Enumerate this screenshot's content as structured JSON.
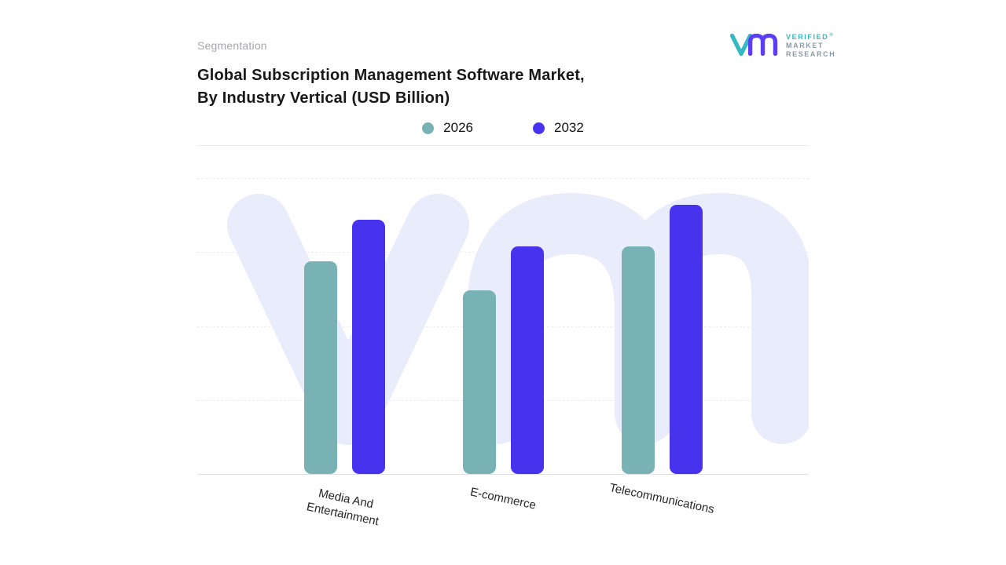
{
  "header": {
    "eyebrow": "Segmentation",
    "title_line1": "Global Subscription Management Software Market,",
    "title_line2": "By Industry Vertical (USD Billion)"
  },
  "logo": {
    "line1": "VERIFIED",
    "line2": "MARKET",
    "line3": "RESEARCH",
    "reg": "®"
  },
  "colors": {
    "series_2026": "#79b2b5",
    "series_2032": "#4733ee",
    "watermark": "#e9ecfb",
    "title_text": "#18181b",
    "eyebrow_text": "#a4a7ae"
  },
  "chart_data": {
    "type": "bar",
    "title": "Global Subscription Management Software Market, By Industry Vertical (USD Billion)",
    "categories": [
      "Media And Entertainment",
      "E-commerce",
      "Telecommunications"
    ],
    "tick_labels": [
      [
        "Media And",
        "Entertainment"
      ],
      [
        "E-commerce"
      ],
      [
        "Telecommunications"
      ]
    ],
    "series": [
      {
        "name": "2026",
        "color": "#79b2b5",
        "values": [
          7.2,
          6.2,
          7.7
        ]
      },
      {
        "name": "2032",
        "color": "#4733ee",
        "values": [
          8.6,
          7.7,
          9.1
        ]
      }
    ],
    "xlabel": "",
    "ylabel": "",
    "value_unit": "USD Billion",
    "ylim": [
      0,
      10
    ],
    "grid": "dashed-horizontal",
    "legend_position": "top-center"
  }
}
